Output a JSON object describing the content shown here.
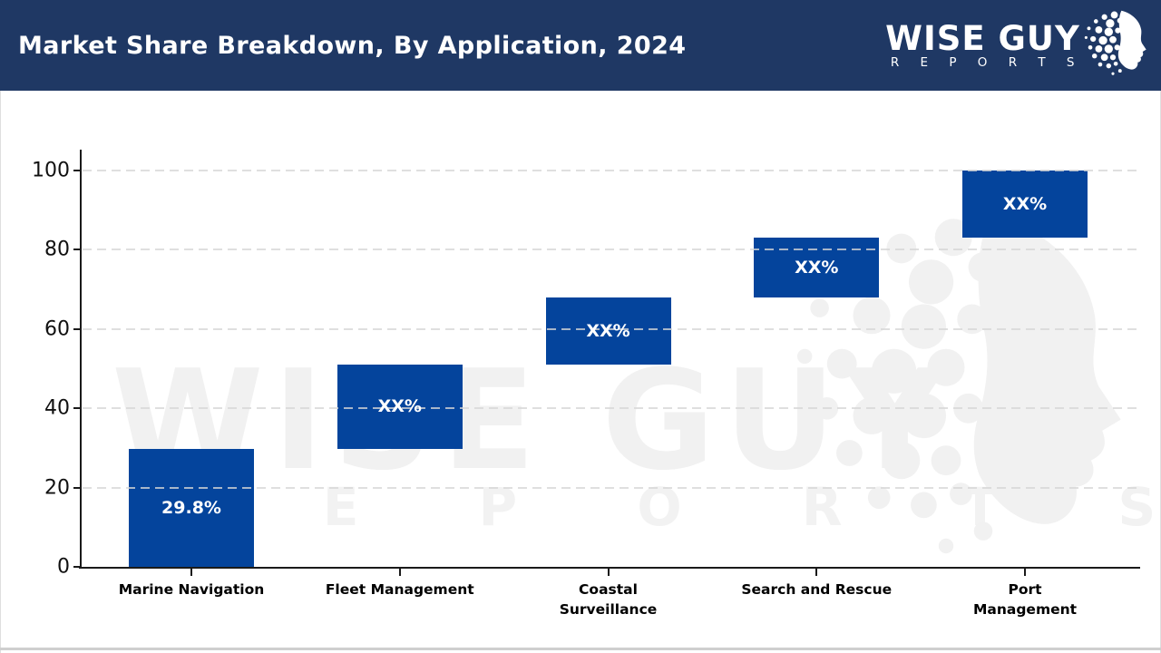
{
  "header": {
    "title": "Market Share Breakdown, By Application, 2024",
    "logo": {
      "line1": "WISE GUY",
      "line2": "R E P O R T S"
    }
  },
  "watermark": {
    "line1": "WISE GUY",
    "line2": "R E P O R T S"
  },
  "colors": {
    "header_bg": "#1F3864",
    "bar": "#04449C",
    "grid": "#DCDCDC",
    "axis": "#1A1A1A",
    "bar_label_text": "#FFFFFF",
    "watermark": "#F1F1F1"
  },
  "chart_data": {
    "type": "bar",
    "subtype": "waterfall",
    "title": "Market Share Breakdown, By Application, 2024",
    "categories": [
      "Marine Navigation",
      "Fleet Management",
      "Coastal\nSurveillance",
      "Search and Rescue",
      "Port Management"
    ],
    "segments": [
      {
        "category": "Marine Navigation",
        "start": 0,
        "end": 29.8,
        "value": 29.8,
        "label": "29.8%"
      },
      {
        "category": "Fleet Management",
        "start": 29.8,
        "end": 51.0,
        "value": 21.2,
        "label": "XX%"
      },
      {
        "category": "Coastal Surveillance",
        "start": 51.0,
        "end": 68.0,
        "value": 17.0,
        "label": "XX%"
      },
      {
        "category": "Search and Rescue",
        "start": 68.0,
        "end": 83.0,
        "value": 15.0,
        "label": "XX%"
      },
      {
        "category": "Port Management",
        "start": 83.0,
        "end": 100.0,
        "value": 17.0,
        "label": "XX%"
      }
    ],
    "yticks": [
      0,
      20,
      40,
      60,
      80,
      100
    ],
    "ylim": [
      0,
      105
    ],
    "xlabel": "",
    "ylabel": "",
    "grid": "horizontal-dashed",
    "legend": "none"
  }
}
